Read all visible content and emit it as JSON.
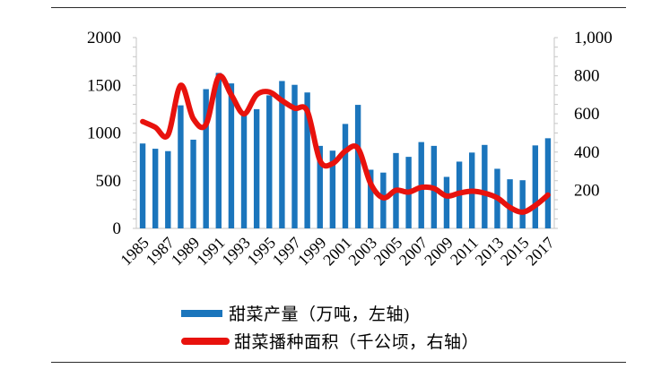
{
  "chart_data": {
    "type": "bar+line",
    "title": "",
    "categories": [
      1985,
      1986,
      1987,
      1988,
      1989,
      1990,
      1991,
      1992,
      1993,
      1994,
      1995,
      1996,
      1997,
      1998,
      1999,
      2000,
      2001,
      2002,
      2003,
      2004,
      2005,
      2006,
      2007,
      2008,
      2009,
      2010,
      2011,
      2012,
      2013,
      2014,
      2015,
      2016,
      2017
    ],
    "x_tick_labels": [
      "1985",
      "1987",
      "1989",
      "1991",
      "1993",
      "1995",
      "1997",
      "1999",
      "2001",
      "2003",
      "2005",
      "2007",
      "2009",
      "2011",
      "2013",
      "2015",
      "2017"
    ],
    "series": [
      {
        "name": "甜菜产量（万吨，左轴)",
        "type": "bar",
        "axis": "left",
        "color": "#1b75bc",
        "values": [
          890,
          835,
          810,
          1290,
          930,
          1460,
          1630,
          1520,
          1205,
          1250,
          1395,
          1545,
          1505,
          1425,
          865,
          815,
          1095,
          1295,
          615,
          585,
          790,
          750,
          905,
          865,
          540,
          700,
          795,
          875,
          625,
          515,
          505,
          870,
          945
        ]
      },
      {
        "name": "甜菜播种面积（千公顷，右轴）",
        "type": "line",
        "axis": "right",
        "color": "#e8120d",
        "values": [
          560,
          530,
          490,
          750,
          575,
          545,
          795,
          700,
          600,
          700,
          715,
          670,
          630,
          615,
          355,
          340,
          405,
          420,
          235,
          160,
          200,
          190,
          215,
          210,
          170,
          185,
          195,
          185,
          160,
          110,
          85,
          120,
          175
        ]
      }
    ],
    "left_axis": {
      "min": 0,
      "max": 2000,
      "tick_labels": [
        "2000",
        "1500",
        "1000",
        "500",
        "0"
      ],
      "tick_values": [
        2000,
        1500,
        1000,
        500,
        0
      ],
      "minor_tick_step": 100
    },
    "right_axis": {
      "min": 0,
      "max": 1000,
      "tick_labels": [
        "1,000",
        "800",
        "600",
        "400",
        "200"
      ],
      "tick_values": [
        1000,
        800,
        600,
        400,
        200
      ],
      "minor_tick_step": 50
    },
    "grid": "off",
    "legend_position": "bottom",
    "legend": {
      "items": [
        {
          "label": "甜菜产量（万吨，左轴)",
          "swatch": "bar",
          "color": "#1b75bc"
        },
        {
          "label": "甜菜播种面积（千公顷，右轴）",
          "swatch": "line",
          "color": "#e8120d"
        }
      ]
    },
    "axis_line_color": "#c6c6c6",
    "text_color": "#000000"
  }
}
